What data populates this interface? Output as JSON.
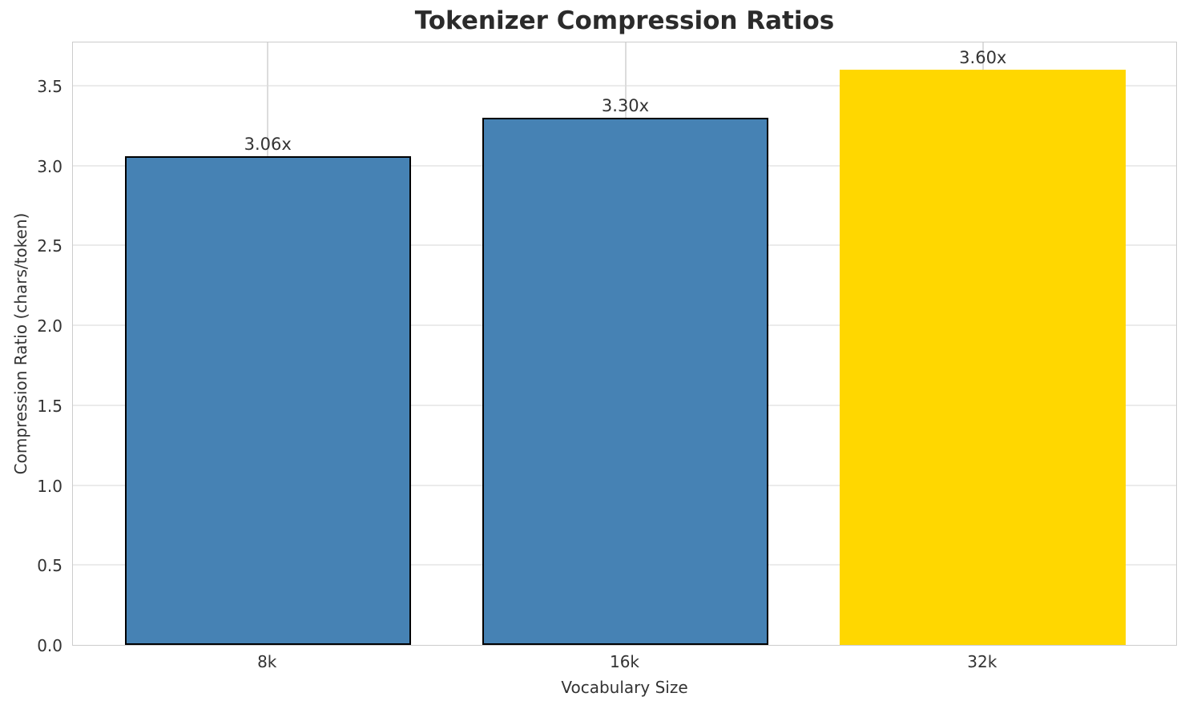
{
  "chart_data": {
    "type": "bar",
    "title": "Tokenizer Compression Ratios",
    "xlabel": "Vocabulary Size",
    "ylabel": "Compression Ratio (chars/token)",
    "categories": [
      "8k",
      "16k",
      "32k"
    ],
    "values": [
      3.06,
      3.3,
      3.6
    ],
    "bar_value_labels": [
      "3.06x",
      "3.30x",
      "3.60x"
    ],
    "bar_colors": [
      "#4682b4",
      "#4682b4",
      "#ffd700"
    ],
    "bar_edge_colors": [
      "#000000",
      "#000000",
      "none"
    ],
    "bar_width_fraction": 0.8,
    "ylim": [
      0,
      3.78
    ],
    "ytick_labels": [
      "0.0",
      "0.5",
      "1.0",
      "1.5",
      "2.0",
      "2.5",
      "3.0",
      "3.5"
    ],
    "grid": "both",
    "legend": "none",
    "colors": {
      "grid_horizontal": "#ebebeb",
      "grid_vertical": "#dcdcdc",
      "spine": "#cccccc",
      "tick_text": "#333333",
      "title_text": "#2b2b2b",
      "background": "#ffffff"
    }
  }
}
